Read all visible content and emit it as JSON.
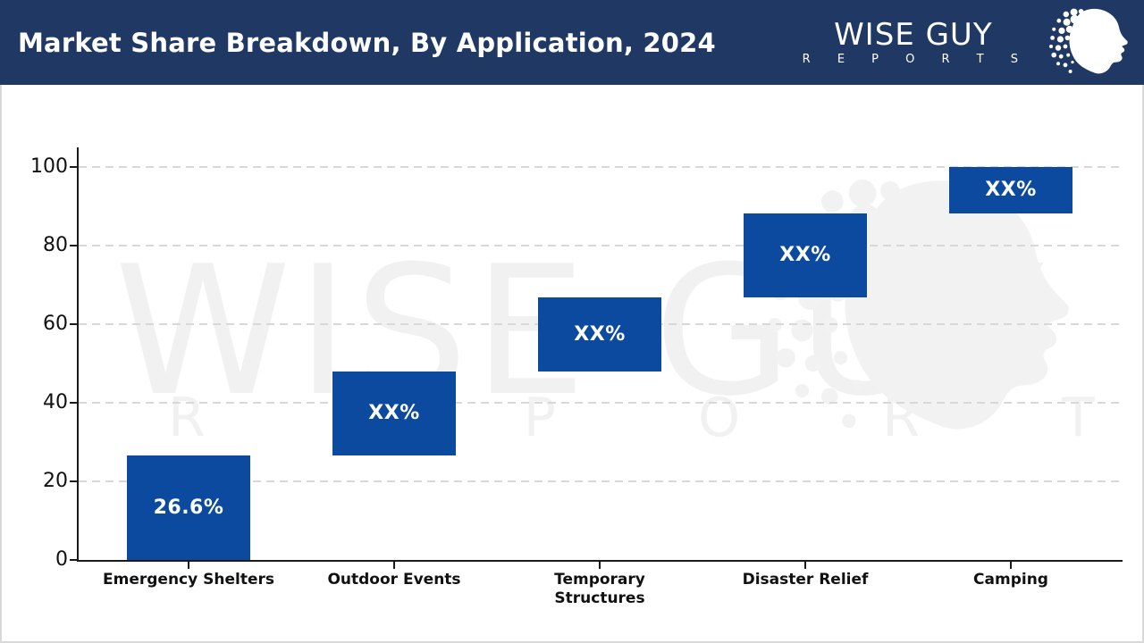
{
  "header": {
    "title": "Market Share Breakdown, By Application, 2024",
    "logo": {
      "line1": "WISE GUY",
      "line2": "R E P O R T S"
    }
  },
  "watermark": {
    "line1": "WISE GUY",
    "line2": "R E P O R T S"
  },
  "colors": {
    "header_bg": "#203864",
    "bar_fill": "#0B4A9F",
    "grid": "#d8d8d8",
    "axis": "#1a1a1a",
    "tick_text": "#111111",
    "bar_label_text": "#ffffff",
    "watermark": "#f1f1f1"
  },
  "chart_data": {
    "type": "bar",
    "subtype": "waterfall",
    "title": "Market Share Breakdown, By Application, 2024",
    "xlabel": "",
    "ylabel": "",
    "ylim": [
      0,
      105
    ],
    "grid": "dashed-horizontal",
    "legend": "none",
    "yticks": [
      0,
      20,
      40,
      60,
      80,
      100
    ],
    "categories": [
      "Emergency Shelters",
      "Outdoor Events",
      "Temporary Structures",
      "Disaster Relief",
      "Camping"
    ],
    "bars": [
      {
        "category": "Emergency Shelters",
        "display": "Emergency Shelters",
        "label": "26.6%",
        "start": 0,
        "end": 26.6
      },
      {
        "category": "Outdoor Events",
        "display": "Outdoor Events",
        "label": "XX%",
        "start": 26.6,
        "end": 48.0
      },
      {
        "category": "Temporary Structures",
        "display": "Temporary\nStructures",
        "label": "XX%",
        "start": 48.0,
        "end": 66.7
      },
      {
        "category": "Disaster Relief",
        "display": "Disaster Relief",
        "label": "XX%",
        "start": 66.7,
        "end": 88.2
      },
      {
        "category": "Camping",
        "display": "Camping",
        "label": "XX%",
        "start": 88.2,
        "end": 100.0
      }
    ]
  }
}
